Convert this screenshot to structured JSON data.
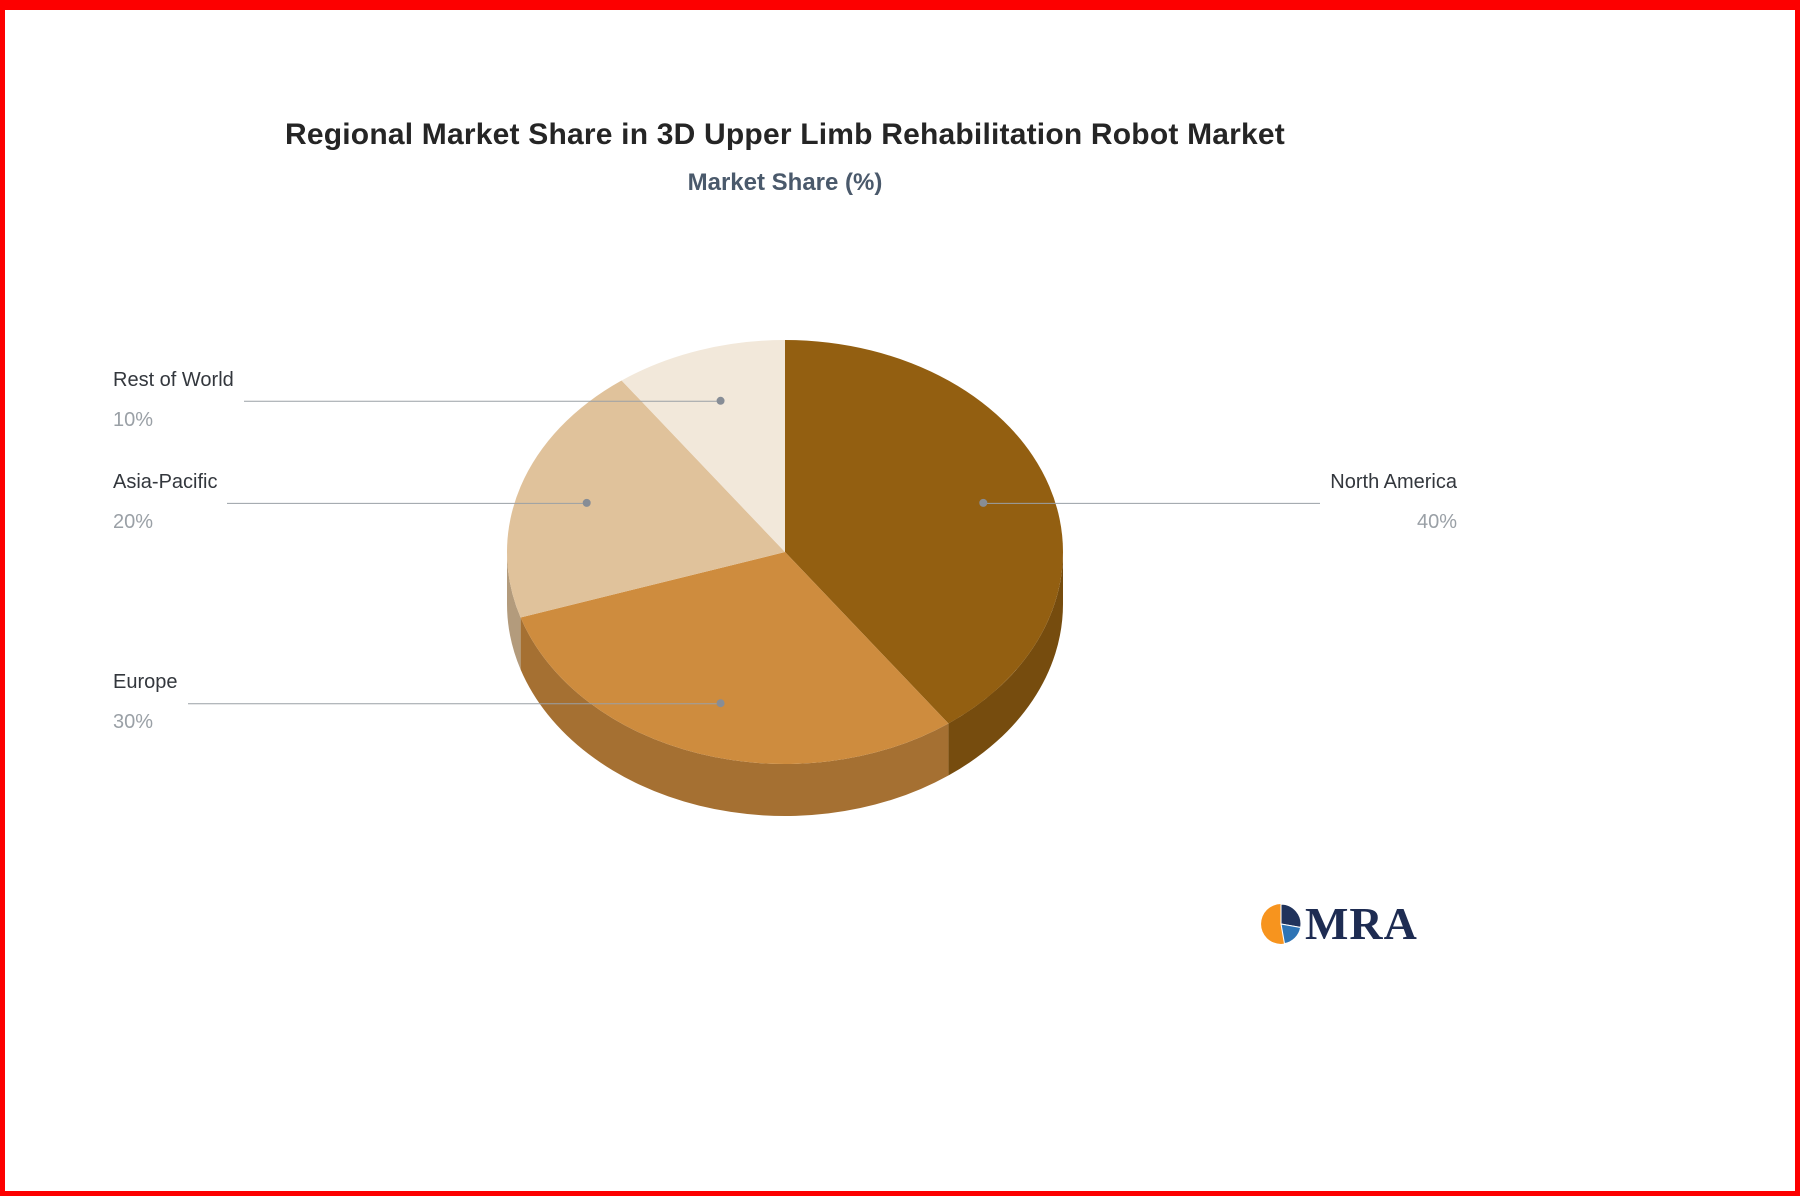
{
  "header": {
    "title": "Regional Market Share in 3D Upper Limb Rehabilitation Robot Market",
    "subtitle": "Market Share (%)"
  },
  "chart_data": {
    "type": "pie",
    "style": "3d",
    "title": "Regional Market Share in 3D Upper Limb Rehabilitation Robot Market",
    "subtitle": "Market Share (%)",
    "unit": "%",
    "labels": [
      "North America",
      "Europe",
      "Asia-Pacific",
      "Rest of World"
    ],
    "values": [
      40,
      30,
      20,
      10
    ],
    "value_labels": [
      "40%",
      "30%",
      "20%",
      "10%"
    ],
    "colors": [
      "#935F11",
      "#CE8C3E",
      "#E0C29B",
      "#F2E8DA"
    ],
    "start_angle_deg": 0,
    "direction": "clockwise",
    "legend": "none",
    "leader_line_color": "#9aa0a6",
    "leader_dot_color": "#878d96"
  },
  "logo": {
    "text": "MRA",
    "colors": {
      "orange": "#f7941e",
      "navy": "#20335c",
      "blue": "#2e74b5"
    }
  }
}
